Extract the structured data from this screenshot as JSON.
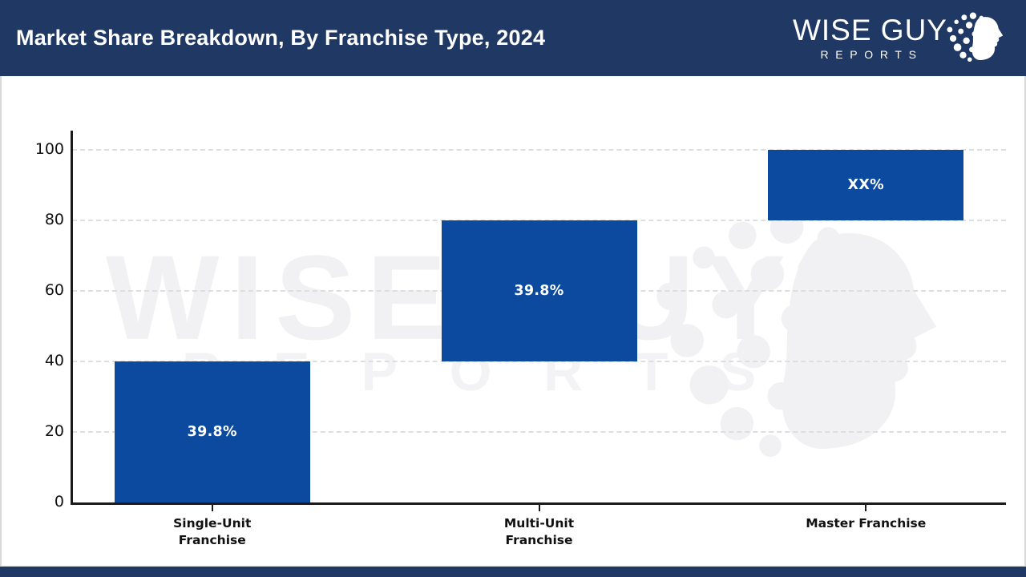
{
  "header": {
    "title": "Market Share Breakdown, By Franchise Type, 2024",
    "bg_color": "#1f3864",
    "logo": {
      "line1": "WISE GUY",
      "line2": "REPORTS"
    }
  },
  "watermark": {
    "line1": "WISE GUY",
    "line2": "REPORTS"
  },
  "chart_data": {
    "type": "bar",
    "subtype": "waterfall",
    "title": "Market Share Breakdown, By Franchise Type, 2024",
    "categories": [
      "Single-Unit\nFranchise",
      "Multi-Unit\nFranchise",
      "Master Franchise"
    ],
    "bars": [
      {
        "category": "Single-Unit Franchise",
        "start": 0,
        "end": 40,
        "label": "39.8%"
      },
      {
        "category": "Multi-Unit Franchise",
        "start": 40,
        "end": 80,
        "label": "39.8%"
      },
      {
        "category": "Master Franchise",
        "start": 80,
        "end": 100,
        "label": "XX%"
      }
    ],
    "bar_color": "#0b4a9f",
    "label_color": "#ffffff",
    "xlabel": "",
    "ylabel": "",
    "ylim": [
      0,
      100
    ],
    "yticks": [
      0,
      20,
      40,
      60,
      80,
      100
    ],
    "grid": "dashed-horizontal",
    "legend": "none"
  }
}
